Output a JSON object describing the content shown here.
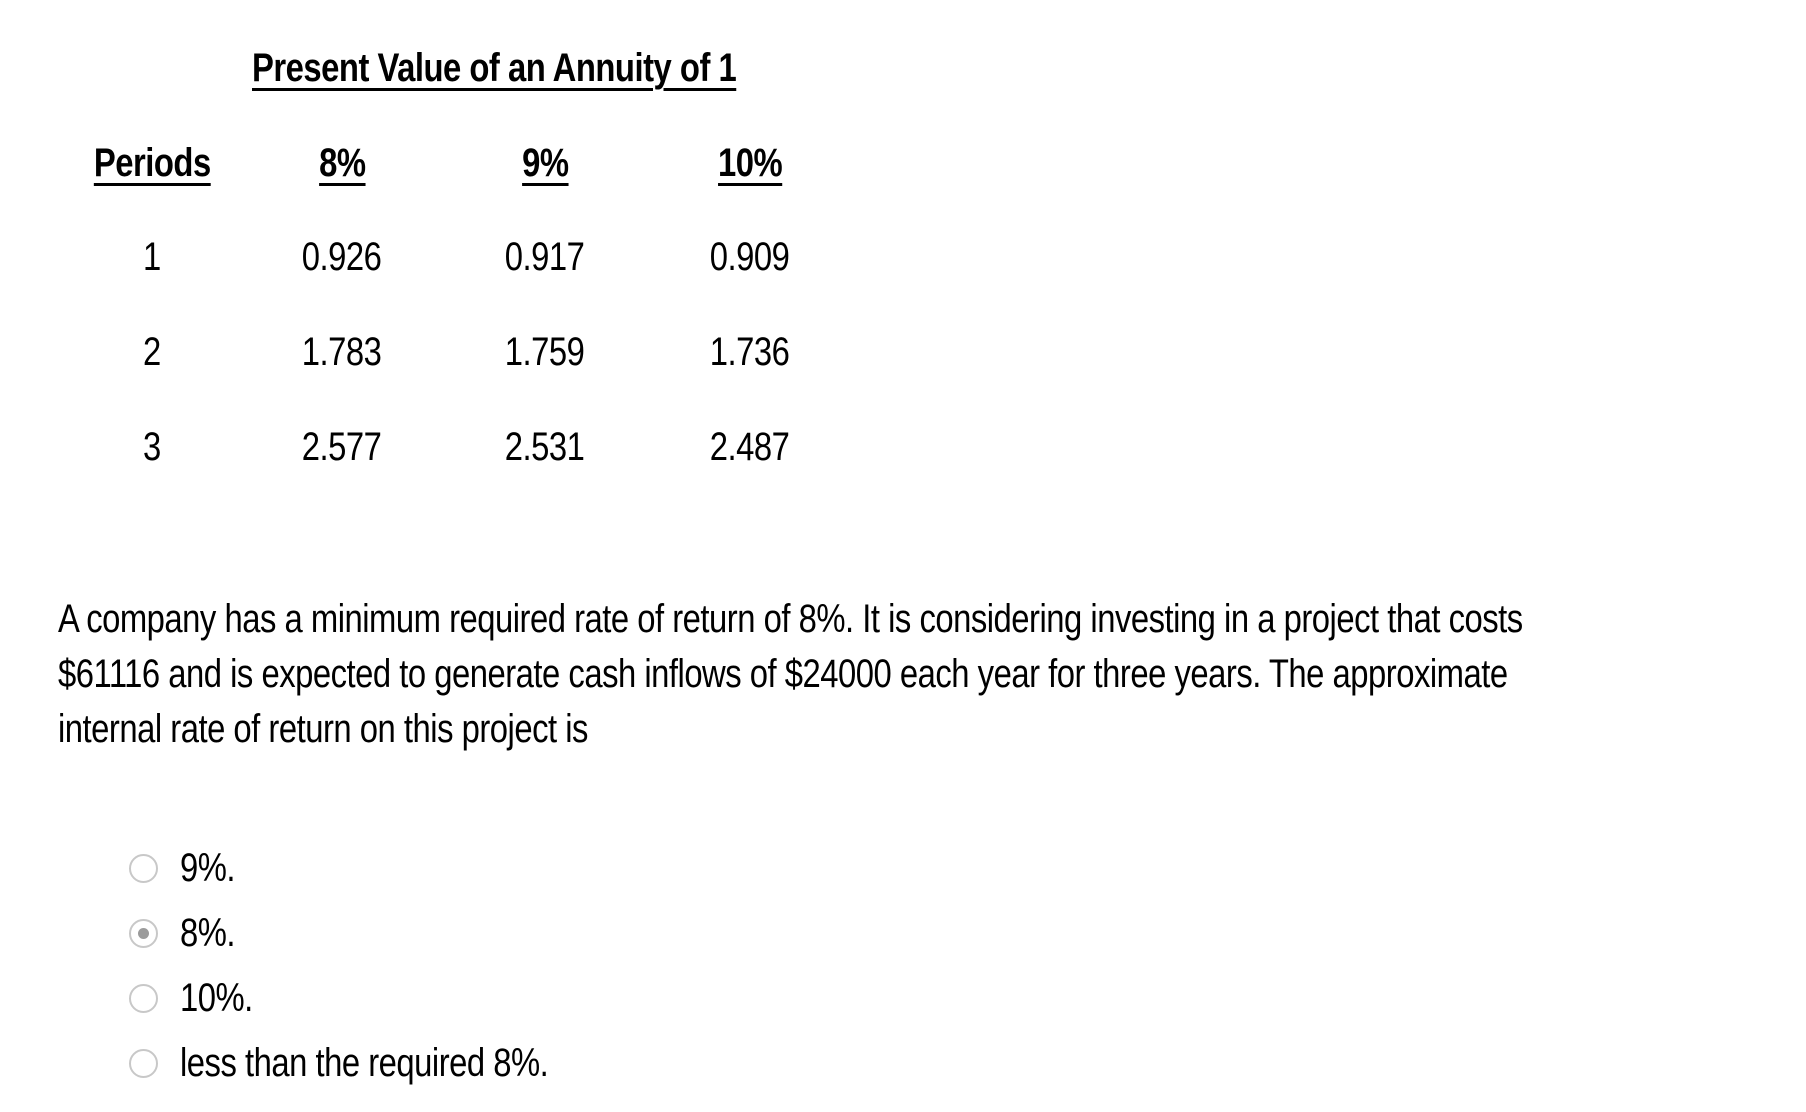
{
  "table": {
    "title": "Present Value of an Annuity of 1",
    "headers": [
      "Periods",
      "8%",
      "9%",
      "10%"
    ],
    "rows": [
      [
        "1",
        "0.926",
        "0.917",
        "0.909"
      ],
      [
        "2",
        "1.783",
        "1.759",
        "1.736"
      ],
      [
        "3",
        "2.577",
        "2.531",
        "2.487"
      ]
    ]
  },
  "question": {
    "text": "A company has a minimum required rate of return of 8%. It is considering investing in a project that costs $61116 and is expected to generate cash inflows of $24000 each year for three years. The approximate internal rate of return on this project is"
  },
  "options": [
    {
      "label": "9%.",
      "selected": false
    },
    {
      "label": "8%.",
      "selected": true
    },
    {
      "label": "10%.",
      "selected": false
    },
    {
      "label": "less than the required 8%.",
      "selected": false
    }
  ],
  "colors": {
    "background": "#ffffff",
    "text": "#000000",
    "radio_border": "#c8c8c8",
    "radio_selected_dot": "#9b9b9b"
  }
}
